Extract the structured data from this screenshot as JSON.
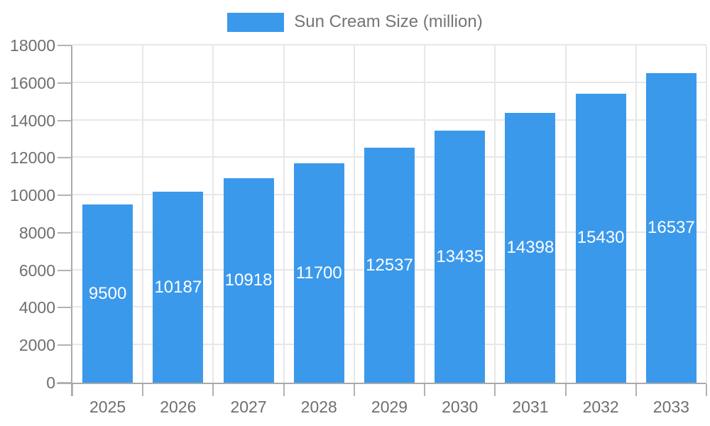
{
  "legend": {
    "label": "Sun Cream Size (million)",
    "swatch_color": "#3B99EC"
  },
  "chart_data": {
    "type": "bar",
    "title": "Sun Cream Size (million)",
    "categories": [
      "2025",
      "2026",
      "2027",
      "2028",
      "2029",
      "2030",
      "2031",
      "2032",
      "2033"
    ],
    "values": [
      9500,
      10187,
      10918,
      11700,
      12537,
      13435,
      14398,
      15430,
      16537
    ],
    "series_name": "Sun Cream Size (million)",
    "xlabel": "",
    "ylabel": "",
    "ylim": [
      0,
      18000
    ],
    "y_ticks": [
      0,
      2000,
      4000,
      6000,
      8000,
      10000,
      12000,
      14000,
      16000,
      18000
    ],
    "grid": "both",
    "legend_position": "top-center",
    "bar_color": "#3B99EC",
    "bar_label_color": "#FFFFFF",
    "axis_text_color": "#6F6F6F",
    "grid_color": "#E7E7E7",
    "axis_line_color": "#A9A9A9",
    "background_color": "#FFFFFF"
  }
}
